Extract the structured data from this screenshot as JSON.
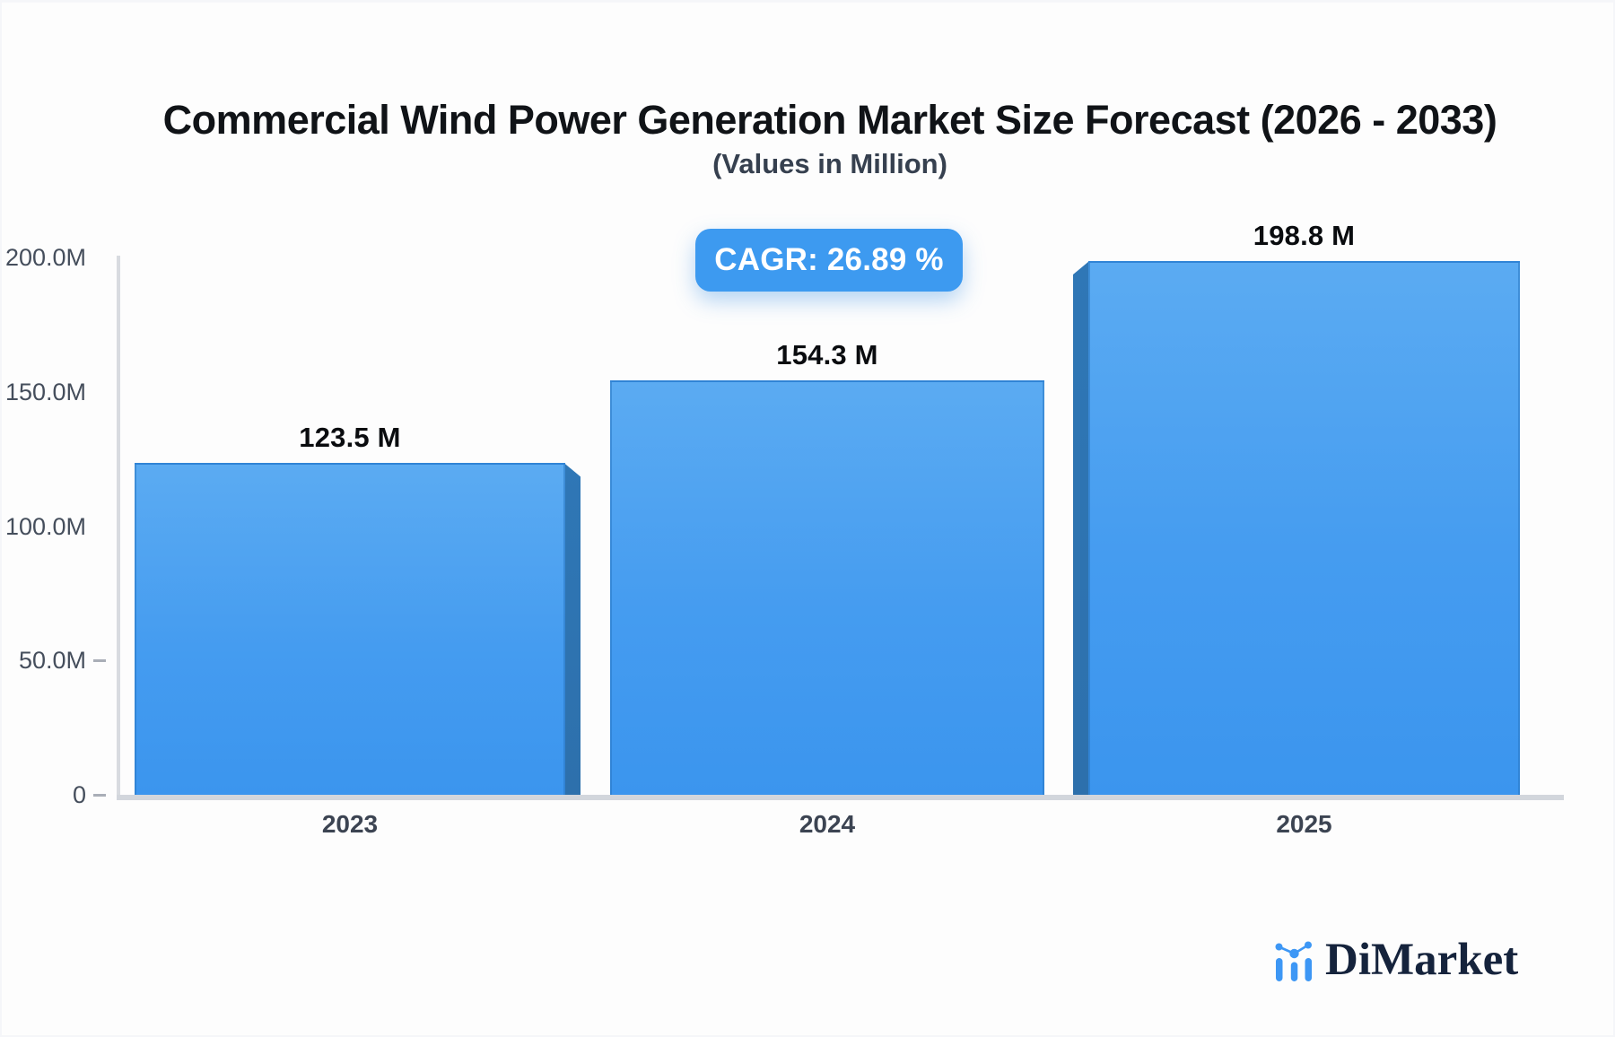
{
  "header": {
    "title": "Commercial Wind Power Generation Market Size Forecast (2026 - 2033)",
    "subtitle": "(Values in Million)"
  },
  "badge": {
    "label": "CAGR: 26.89 %",
    "bg_color": "#3d9af0",
    "text_color": "#ffffff"
  },
  "chart_data": {
    "type": "bar",
    "title": "Commercial Wind Power Generation Market Size Forecast (2026 - 2033)",
    "subtitle": "(Values in Million)",
    "unit": "Million",
    "cagr_percent": 26.89,
    "categories": [
      "2023",
      "2024",
      "2025"
    ],
    "values": [
      123.5,
      154.3,
      198.8
    ],
    "value_labels": [
      "123.5 M",
      "154.3 M",
      "198.8 M"
    ],
    "ylim": [
      0,
      200
    ],
    "grid": false,
    "legend": false,
    "y_ticks": [
      {
        "text": "200.0M",
        "value": 200,
        "dash": false
      },
      {
        "text": "150.0M",
        "value": 150,
        "dash": false
      },
      {
        "text": "100.0M",
        "value": 100,
        "dash": false
      },
      {
        "text": "50.0M",
        "value": 50,
        "dash": true
      },
      {
        "text": "0",
        "value": 0,
        "dash": true
      }
    ],
    "bar_color_top": "#5babf2",
    "bar_color_bottom": "#3b95ee",
    "bar_side_color": "#2e74b2",
    "axis_color": "#d2d6dc"
  },
  "footer": {
    "logo_text": "DiMarket",
    "logo_icon": "bar-chart-logo-icon",
    "logo_blue": "#3d97f5",
    "logo_text_color": "#15233c"
  }
}
